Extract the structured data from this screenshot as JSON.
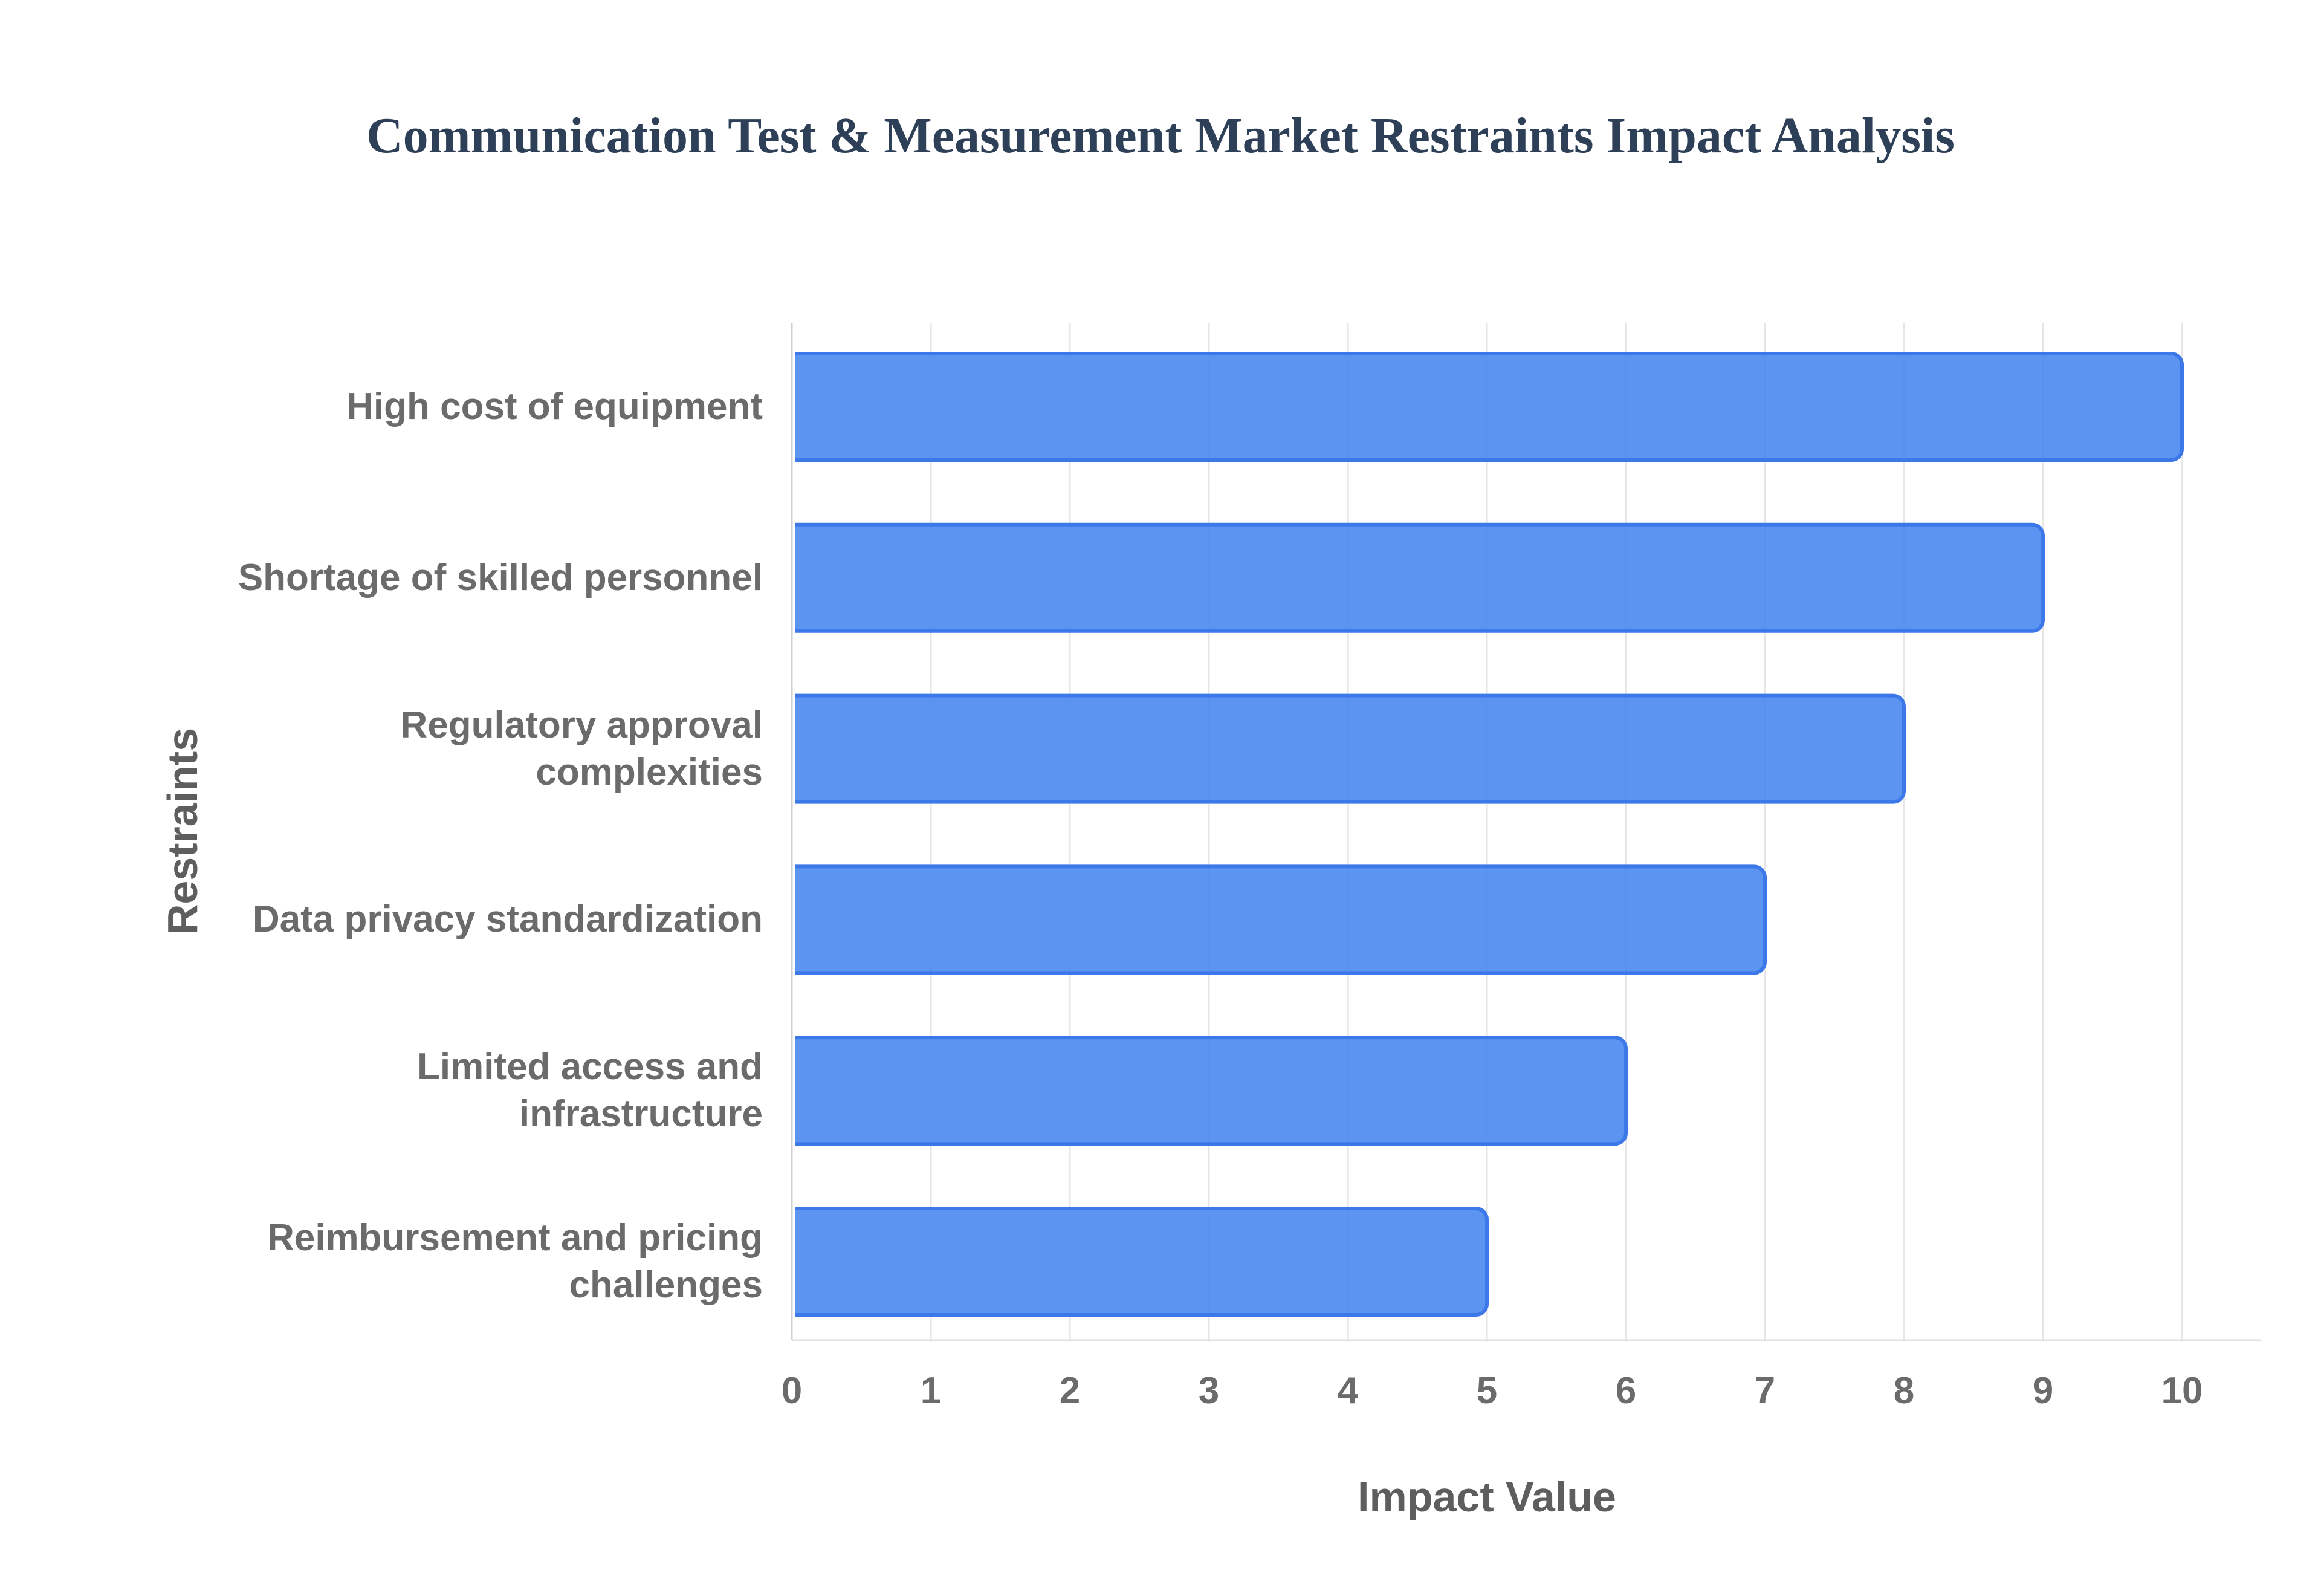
{
  "chart_data": {
    "type": "bar",
    "orientation": "horizontal",
    "title": "Communication Test & Measurement Market Restraints Impact Analysis",
    "categories": [
      "High cost of equipment",
      "Shortage of skilled personnel",
      "Regulatory approval complexities",
      "Data privacy standardization",
      "Limited access and infrastructure",
      "Reimbursement and pricing challenges"
    ],
    "category_label_lines": [
      [
        "High cost of equipment"
      ],
      [
        "Shortage of skilled personnel"
      ],
      [
        "Regulatory approval",
        "complexities"
      ],
      [
        "Data privacy standardization"
      ],
      [
        "Limited access and",
        "infrastructure"
      ],
      [
        "Reimbursement and pricing",
        "challenges"
      ]
    ],
    "values": [
      10,
      9,
      8,
      7,
      6,
      5
    ],
    "xlabel": "Impact Value",
    "ylabel": "Restraints",
    "xlim": [
      0,
      10
    ],
    "xticks": [
      0,
      1,
      2,
      3,
      4,
      5,
      6,
      7,
      8,
      9,
      10
    ],
    "grid": true,
    "legend": "none",
    "colors": {
      "bar_fill": "rgba(62,131,238,0.85)",
      "bar_border": "#3d78e8",
      "title": "#2e4057",
      "category_label": "#6b6b6b",
      "tick_label": "#6b6b6b",
      "axis_title": "#5e5e5e",
      "gridline": "#e6e6e6",
      "zero_line": "#cfcfcf",
      "axis_line": "#e0e0e0",
      "background": "#ffffff"
    }
  }
}
